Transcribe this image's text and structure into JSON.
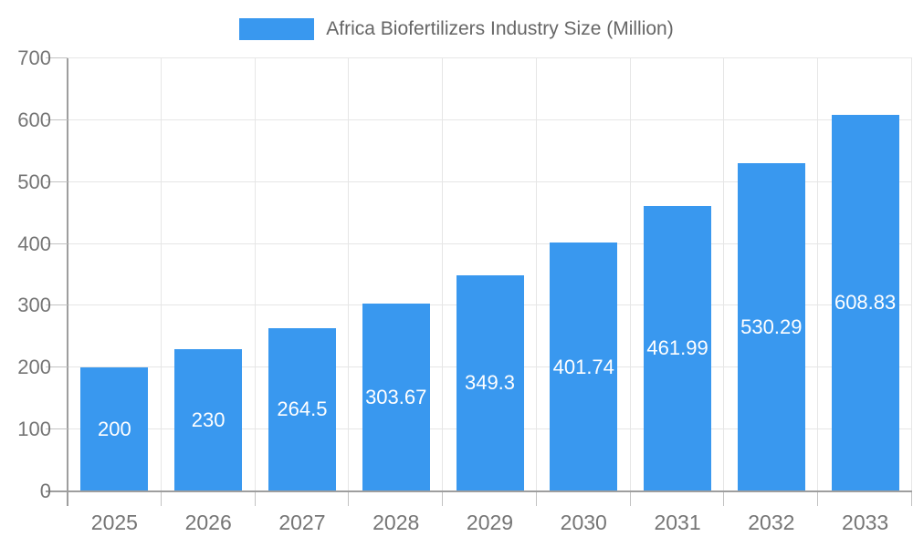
{
  "legend": {
    "label": "Africa Biofertilizers Industry Size (Million)"
  },
  "chart_data": {
    "type": "bar",
    "title": "Africa Biofertilizers Industry Size (Million)",
    "categories": [
      "2025",
      "2026",
      "2027",
      "2028",
      "2029",
      "2030",
      "2031",
      "2032",
      "2033"
    ],
    "values": [
      200,
      230,
      264.5,
      303.67,
      349.3,
      401.74,
      461.99,
      530.29,
      608.83
    ],
    "value_labels": [
      "200",
      "230",
      "264.5",
      "303.67",
      "349.3",
      "401.74",
      "461.99",
      "530.29",
      "608.83"
    ],
    "xlabel": "",
    "ylabel": "",
    "ylim": [
      0,
      700
    ],
    "y_ticks": [
      0,
      100,
      200,
      300,
      400,
      500,
      600,
      700
    ],
    "y_tick_labels": [
      "0",
      "100",
      "200",
      "300",
      "400",
      "500",
      "600",
      "700"
    ],
    "grid": true,
    "legend_position": "top-center",
    "colors": {
      "bar": "#3998ef",
      "bar_value_text": "#ffffff",
      "legend_text": "#666666",
      "axis_text": "#757575",
      "gridline": "#e6e6e6",
      "axis_line": "#9e9e9e",
      "tick": "#c2c2c2",
      "background": "#ffffff"
    }
  }
}
